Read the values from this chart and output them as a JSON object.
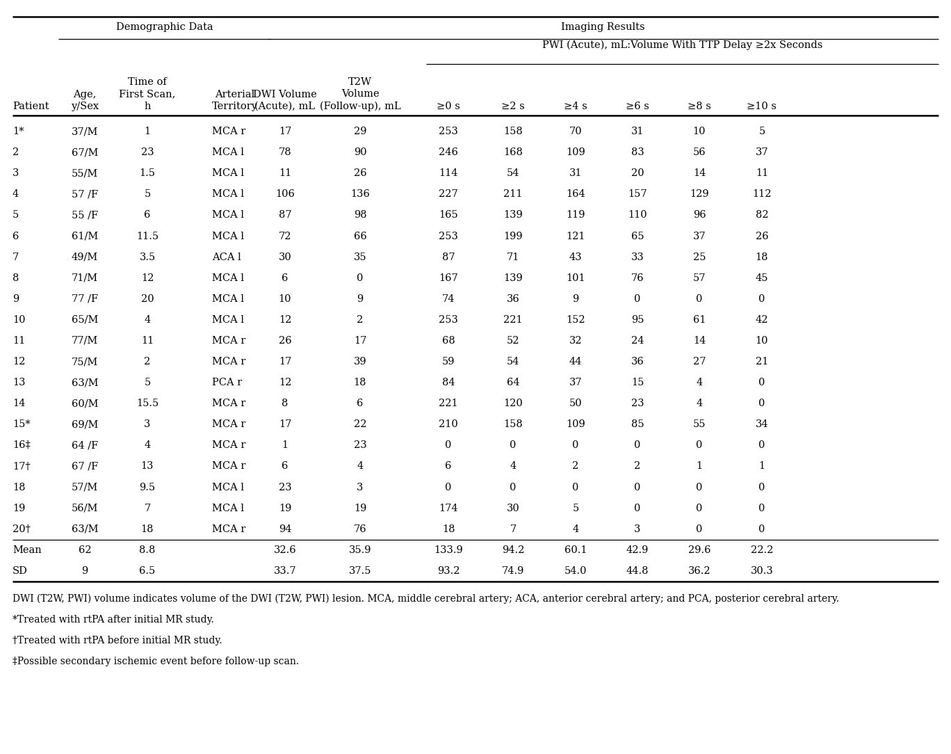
{
  "rows": [
    [
      "1*",
      "37/M",
      "1",
      "MCA r",
      "17",
      "29",
      "253",
      "158",
      "70",
      "31",
      "10",
      "5"
    ],
    [
      "2",
      "67/M",
      "23",
      "MCA l",
      "78",
      "90",
      "246",
      "168",
      "109",
      "83",
      "56",
      "37"
    ],
    [
      "3",
      "55/M",
      "1.5",
      "MCA l",
      "11",
      "26",
      "114",
      "54",
      "31",
      "20",
      "14",
      "11"
    ],
    [
      "4",
      "57 /F",
      "5",
      "MCA l",
      "106",
      "136",
      "227",
      "211",
      "164",
      "157",
      "129",
      "112"
    ],
    [
      "5",
      "55 /F",
      "6",
      "MCA l",
      "87",
      "98",
      "165",
      "139",
      "119",
      "110",
      "96",
      "82"
    ],
    [
      "6",
      "61/M",
      "11.5",
      "MCA l",
      "72",
      "66",
      "253",
      "199",
      "121",
      "65",
      "37",
      "26"
    ],
    [
      "7",
      "49/M",
      "3.5",
      "ACA l",
      "30",
      "35",
      "87",
      "71",
      "43",
      "33",
      "25",
      "18"
    ],
    [
      "8",
      "71/M",
      "12",
      "MCA l",
      "6",
      "0",
      "167",
      "139",
      "101",
      "76",
      "57",
      "45"
    ],
    [
      "9",
      "77 /F",
      "20",
      "MCA l",
      "10",
      "9",
      "74",
      "36",
      "9",
      "0",
      "0",
      "0"
    ],
    [
      "10",
      "65/M",
      "4",
      "MCA l",
      "12",
      "2",
      "253",
      "221",
      "152",
      "95",
      "61",
      "42"
    ],
    [
      "11",
      "77/M",
      "11",
      "MCA r",
      "26",
      "17",
      "68",
      "52",
      "32",
      "24",
      "14",
      "10"
    ],
    [
      "12",
      "75/M",
      "2",
      "MCA r",
      "17",
      "39",
      "59",
      "54",
      "44",
      "36",
      "27",
      "21"
    ],
    [
      "13",
      "63/M",
      "5",
      "PCA r",
      "12",
      "18",
      "84",
      "64",
      "37",
      "15",
      "4",
      "0"
    ],
    [
      "14",
      "60/M",
      "15.5",
      "MCA r",
      "8",
      "6",
      "221",
      "120",
      "50",
      "23",
      "4",
      "0"
    ],
    [
      "15*",
      "69/M",
      "3",
      "MCA r",
      "17",
      "22",
      "210",
      "158",
      "109",
      "85",
      "55",
      "34"
    ],
    [
      "16‡",
      "64 /F",
      "4",
      "MCA r",
      "1",
      "23",
      "0",
      "0",
      "0",
      "0",
      "0",
      "0"
    ],
    [
      "17†",
      "67 /F",
      "13",
      "MCA r",
      "6",
      "4",
      "6",
      "4",
      "2",
      "2",
      "1",
      "1"
    ],
    [
      "18",
      "57/M",
      "9.5",
      "MCA l",
      "23",
      "3",
      "0",
      "0",
      "0",
      "0",
      "0",
      "0"
    ],
    [
      "19",
      "56/M",
      "7",
      "MCA l",
      "19",
      "19",
      "174",
      "30",
      "5",
      "0",
      "0",
      "0"
    ],
    [
      "20†",
      "63/M",
      "18",
      "MCA r",
      "94",
      "76",
      "18",
      "7",
      "4",
      "3",
      "0",
      "0"
    ]
  ],
  "mean_row": [
    "Mean",
    "62",
    "8.8",
    "",
    "32.6",
    "35.9",
    "133.9",
    "94.2",
    "60.1",
    "42.9",
    "29.6",
    "22.2"
  ],
  "sd_row": [
    "SD",
    "9",
    "6.5",
    "",
    "33.7",
    "37.5",
    "93.2",
    "74.9",
    "54.0",
    "44.8",
    "36.2",
    "30.3"
  ],
  "footnotes": [
    "DWI (T2W, PWI) volume indicates volume of the DWI (T2W, PWI) lesion. MCA, middle cerebral artery; ACA, anterior cerebral artery; and PCA, posterior cerebral artery.",
    "*Treated with rtPA after initial MR study.",
    "†Treated with rtPA before initial MR study.",
    "‡Possible secondary ischemic event before follow-up scan."
  ],
  "demo_label": "Demographic Data",
  "img_label": "Imaging Results",
  "pwi_label": "PWI (Acute), mL:Volume With TTP Delay ≥2x Seconds",
  "col3_labels": [
    "Patient",
    "Age,\ny/Sex",
    "Time of\nFirst Scan,\nh",
    "Arterial\nTerritory",
    "DWI Volume\n(Acute), mL",
    "T2W\nVolume\n(Follow-up), mL",
    "≥0 s",
    "≥2 s",
    "≥4 s",
    "≥6 s",
    "≥8 s",
    "≥10 s"
  ],
  "bg_color": "#ffffff",
  "text_color": "#000000",
  "font_size": 10.5,
  "line_thick": 1.8,
  "line_thin": 0.9
}
